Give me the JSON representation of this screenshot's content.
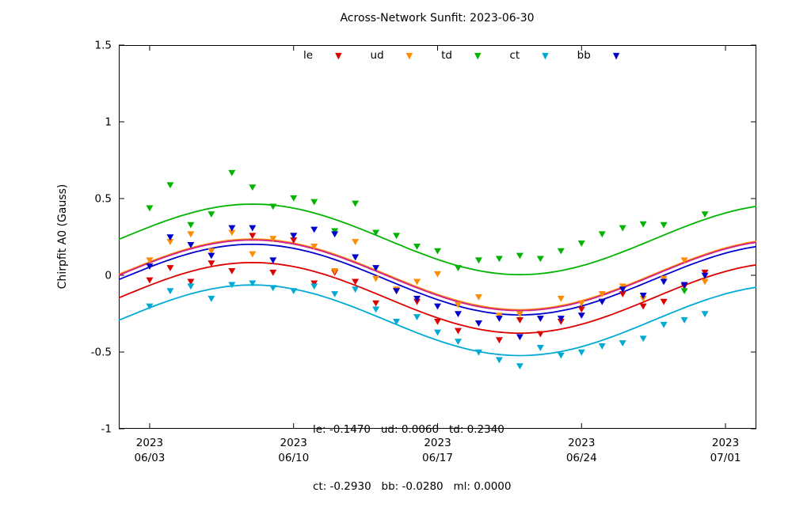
{
  "chart_data": {
    "type": "scatter",
    "title": "Across-Network Sunfit: 2023-06-30",
    "ylabel": "Chirpfit A0 (Gauss)",
    "xlim_days": [
      -1.5,
      29.5
    ],
    "ylim": [
      -1.0,
      1.5
    ],
    "grid": false,
    "ytick_values": [
      -1,
      -0.5,
      0,
      0.5,
      1,
      1.5
    ],
    "ytick_labels": [
      "-1",
      "-0.5",
      "0",
      "0.5",
      "1",
      "1.5"
    ],
    "xticks": [
      {
        "day": 0,
        "year": "2023",
        "date": "06/03"
      },
      {
        "day": 7,
        "year": "2023",
        "date": "06/10"
      },
      {
        "day": 14,
        "year": "2023",
        "date": "06/17"
      },
      {
        "day": 21,
        "year": "2023",
        "date": "06/24"
      },
      {
        "day": 28,
        "year": "2023",
        "date": "07/01"
      }
    ],
    "x_day0_date": "2023-06-03",
    "x_days": [
      0,
      1,
      2,
      3,
      4,
      5,
      6,
      7,
      8,
      9,
      10,
      11,
      12,
      13,
      14,
      15,
      16,
      17,
      18,
      19,
      20,
      21,
      22,
      23,
      24,
      25,
      26,
      27
    ],
    "fit_model": {
      "shape": "cosine",
      "amplitude": 0.23,
      "peak_day": 5,
      "period_days": 26
    },
    "fit_offsets": {
      "le": -0.147,
      "ud": 0.006,
      "td": 0.234,
      "ct": -0.293,
      "bb": -0.028,
      "ml": 0.0
    },
    "curve_colors": {
      "le": "#dd0000",
      "ud": "#ff8c00",
      "td": "#00b400",
      "ct": "#00aad4",
      "bb": "#0000cc",
      "ml": "#d02090"
    },
    "curve_order": [
      "ud",
      "ml",
      "bb",
      "le",
      "ct",
      "td"
    ],
    "series": [
      {
        "name": "le",
        "color": "#dd0000",
        "marker": "triangle-down",
        "y": [
          -0.03,
          0.05,
          -0.04,
          0.08,
          0.03,
          0.26,
          0.02,
          0.23,
          -0.05,
          0.02,
          -0.04,
          -0.18,
          -0.1,
          -0.17,
          -0.3,
          -0.36,
          -0.31,
          -0.42,
          -0.29,
          -0.38,
          -0.3,
          -0.22,
          -0.17,
          -0.12,
          -0.2,
          -0.17,
          -0.07,
          0.02
        ]
      },
      {
        "name": "ud",
        "color": "#ff8c00",
        "marker": "triangle-down",
        "y": [
          0.1,
          0.22,
          0.27,
          0.16,
          0.28,
          0.14,
          0.24,
          0.26,
          0.19,
          0.03,
          0.22,
          -0.02,
          -0.09,
          -0.04,
          0.01,
          -0.19,
          -0.14,
          -0.26,
          -0.25,
          -0.28,
          -0.15,
          -0.18,
          -0.12,
          -0.07,
          -0.15,
          -0.02,
          0.1,
          -0.04
        ]
      },
      {
        "name": "td",
        "color": "#00b400",
        "marker": "triangle-down",
        "y": [
          0.44,
          0.59,
          0.33,
          0.4,
          0.67,
          0.575,
          0.45,
          0.505,
          0.48,
          0.29,
          0.47,
          0.28,
          0.26,
          0.19,
          0.16,
          0.05,
          0.1,
          0.11,
          0.13,
          0.11,
          0.16,
          0.21,
          0.27,
          0.31,
          0.335,
          0.33,
          -0.1,
          0.4
        ]
      },
      {
        "name": "ct",
        "color": "#00aad4",
        "marker": "triangle-down",
        "y": [
          -0.2,
          -0.1,
          -0.07,
          -0.15,
          -0.06,
          -0.05,
          -0.08,
          -0.1,
          -0.07,
          -0.12,
          -0.09,
          -0.22,
          -0.3,
          -0.27,
          -0.37,
          -0.43,
          -0.5,
          -0.55,
          -0.59,
          -0.47,
          -0.52,
          -0.5,
          -0.46,
          -0.44,
          -0.41,
          -0.32,
          -0.29,
          -0.25
        ]
      },
      {
        "name": "bb",
        "color": "#0000cc",
        "marker": "triangle-down",
        "y": [
          0.06,
          0.25,
          0.2,
          0.13,
          0.31,
          0.31,
          0.1,
          0.26,
          0.3,
          0.27,
          0.12,
          0.05,
          -0.1,
          -0.15,
          -0.2,
          -0.25,
          -0.31,
          -0.28,
          -0.4,
          -0.28,
          -0.28,
          -0.26,
          -0.17,
          -0.09,
          -0.13,
          -0.04,
          -0.06,
          0.0
        ]
      }
    ],
    "annotation_line1": "le: -0.1470   ud: 0.0060   td: 0.2340",
    "annotation_line2": "ct: -0.2930   bb: -0.0280   ml: 0.0000"
  }
}
